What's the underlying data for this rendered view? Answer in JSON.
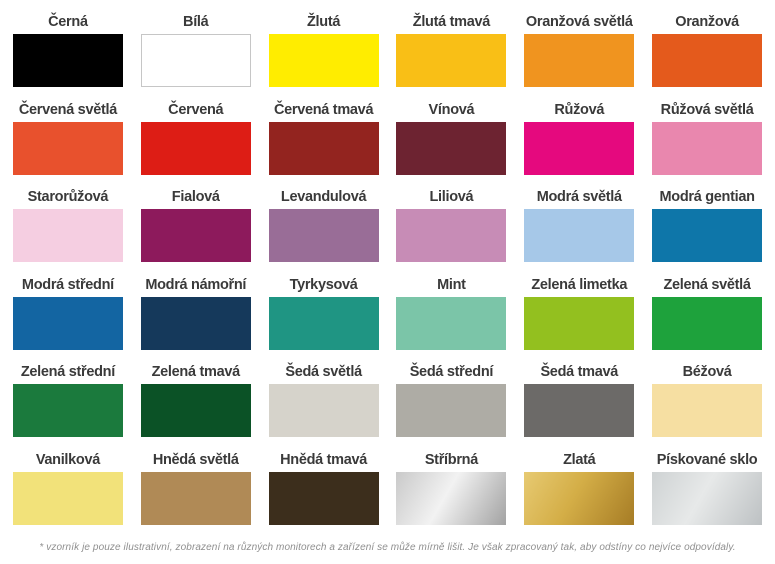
{
  "grid": {
    "rows": 6,
    "cols": 6,
    "label_color": "#3a3a3a",
    "cells": [
      {
        "label": "Černá",
        "color": "#000000"
      },
      {
        "label": "Bílá",
        "color": "#ffffff",
        "border": "#c6c6c6"
      },
      {
        "label": "Žlutá",
        "color": "#ffed00"
      },
      {
        "label": "Žlutá tmavá",
        "color": "#f9bf16"
      },
      {
        "label": "Oranžová světlá",
        "color": "#f0941f"
      },
      {
        "label": "Oranžová",
        "color": "#e45a1c"
      },
      {
        "label": "Červená světlá",
        "color": "#e8512d"
      },
      {
        "label": "Červená",
        "color": "#dd1d15"
      },
      {
        "label": "Červená tmavá",
        "color": "#93241f"
      },
      {
        "label": "Vínová",
        "color": "#6d2331"
      },
      {
        "label": "Růžová",
        "color": "#e5097e"
      },
      {
        "label": "Růžová světlá",
        "color": "#e987ae"
      },
      {
        "label": "Starorůžová",
        "color": "#f5cee1"
      },
      {
        "label": "Fialová",
        "color": "#8d1a5c"
      },
      {
        "label": "Levandulová",
        "color": "#996d97"
      },
      {
        "label": "Liliová",
        "color": "#c78cb6"
      },
      {
        "label": "Modrá světlá",
        "color": "#a6c8e8"
      },
      {
        "label": "Modrá gentian",
        "color": "#0e76a9"
      },
      {
        "label": "Modrá střední",
        "color": "#1365a2"
      },
      {
        "label": "Modrá námořní",
        "color": "#15395b"
      },
      {
        "label": "Tyrkysová",
        "color": "#1f9583"
      },
      {
        "label": "Mint",
        "color": "#7bc5a8"
      },
      {
        "label": "Zelená limetka",
        "color": "#93c01f"
      },
      {
        "label": "Zelená světlá",
        "color": "#1ea23c"
      },
      {
        "label": "Zelená střední",
        "color": "#1b7a3d"
      },
      {
        "label": "Zelená tmavá",
        "color": "#0b5226"
      },
      {
        "label": "Šedá světlá",
        "color": "#d6d3cb"
      },
      {
        "label": "Šedá střední",
        "color": "#aeaca5"
      },
      {
        "label": "Šedá tmavá",
        "color": "#6c6a68"
      },
      {
        "label": "Béžová",
        "color": "#f6dfa2"
      },
      {
        "label": "Vanilková",
        "color": "#f2e27a"
      },
      {
        "label": "Hnědá světlá",
        "color": "#b08a56"
      },
      {
        "label": "Hnědá tmavá",
        "color": "#3c2e1c"
      },
      {
        "label": "Stříbrná",
        "gradient": {
          "angle": 120,
          "stops": [
            "#c9c9c9",
            "#f2f2f2",
            "#a2a2a2"
          ]
        }
      },
      {
        "label": "Zlatá",
        "gradient": {
          "angle": 120,
          "stops": [
            "#e7ca72",
            "#d4ae47",
            "#a67c25"
          ]
        }
      },
      {
        "label": "Pískované sklo",
        "gradient": {
          "angle": 120,
          "stops": [
            "#ced2d3",
            "#e7e9e9",
            "#bdc1c3"
          ]
        }
      }
    ]
  },
  "footnote": "* vzorník je pouze ilustrativní, zobrazení na různých monitorech a zařízení se může mírně lišit. Je však zpracovaný tak, aby odstíny co nejvíce odpovídaly."
}
